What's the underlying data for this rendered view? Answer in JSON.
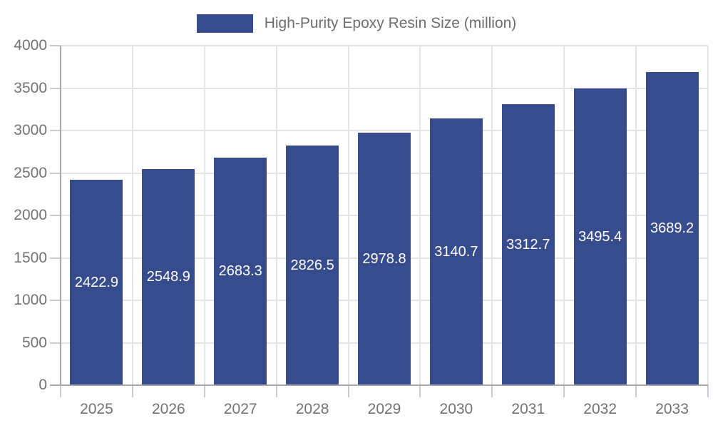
{
  "chart_data": {
    "type": "bar",
    "title": "High-Purity Epoxy Resin Size (million)",
    "categories": [
      "2025",
      "2026",
      "2027",
      "2028",
      "2029",
      "2030",
      "2031",
      "2032",
      "2033"
    ],
    "values": [
      2422.9,
      2548.9,
      2683.3,
      2826.5,
      2978.8,
      3140.7,
      3312.7,
      3495.4,
      3689.2
    ],
    "series": [
      {
        "name": "High-Purity Epoxy Resin Size (million)",
        "values": [
          2422.9,
          2548.9,
          2683.3,
          2826.5,
          2978.8,
          3140.7,
          3312.7,
          3495.4,
          3689.2
        ]
      }
    ],
    "xlabel": "",
    "ylabel": "",
    "ylim": [
      0,
      4000
    ],
    "ytick_step": 500,
    "ytick_labels": [
      "0",
      "500",
      "1000",
      "1500",
      "2000",
      "2500",
      "3000",
      "3500",
      "4000"
    ],
    "grid": true,
    "legend_position": "top",
    "value_labels": "centered inside bars, one decimal",
    "colors": {
      "bar": "#374C8C",
      "grid": "#E4E4E8",
      "axis": "#A7A7AB",
      "tick": "#C8CBD6",
      "axis_text": "#737373",
      "title_text": "#6E6E6E",
      "value_text": "#FFFFFF",
      "background": "#FFFFFF"
    }
  }
}
